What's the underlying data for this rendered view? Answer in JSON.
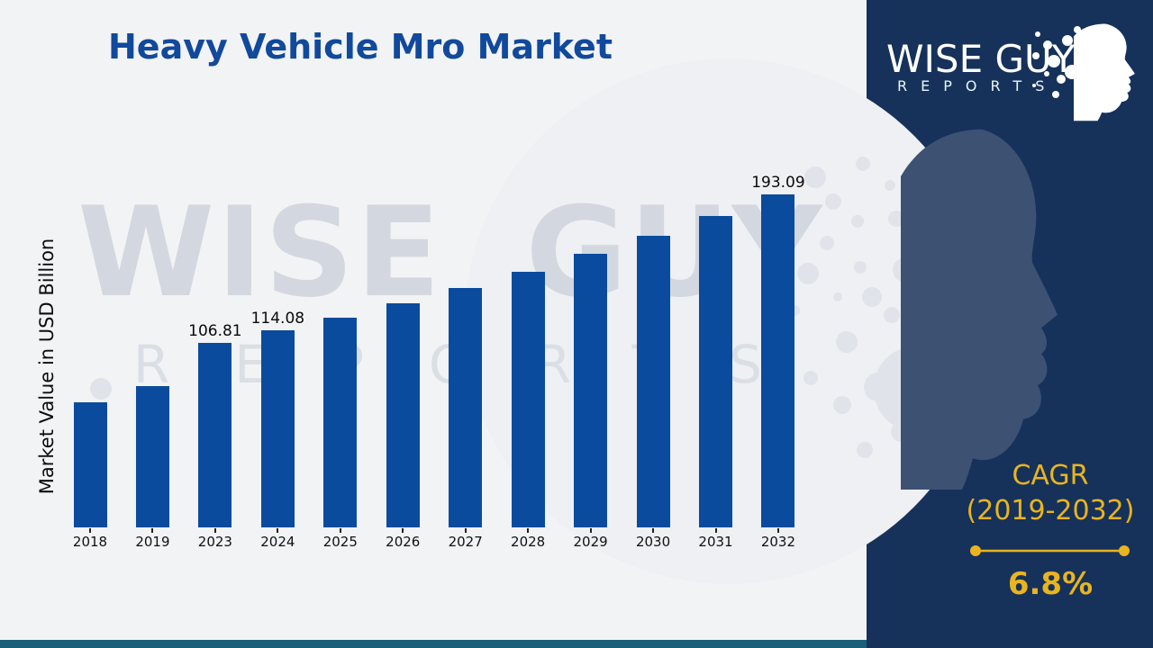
{
  "header": {
    "title": "Heavy Vehicle Mro Market"
  },
  "axis": {
    "y_label": "Market Value in USD Billion"
  },
  "watermark": {
    "line1": "WISE GUY",
    "line2": "REPORTS"
  },
  "logo": {
    "line1": "WISE GUY",
    "line2": "REPORTS"
  },
  "cagr": {
    "label": "CAGR",
    "range": "(2019-2032)",
    "value": "6.8%"
  },
  "colors": {
    "bar": "#0b4b9e",
    "title": "#11499c",
    "navy_panel": "#16325b",
    "teal_strip": "#1b5f7b",
    "gold": "#e9b41f",
    "background": "#f2f3f4"
  },
  "chart_data": {
    "type": "bar",
    "title": "Heavy Vehicle Mro Market",
    "xlabel": "",
    "ylabel": "Market Value in USD Billion",
    "categories": [
      "2018",
      "2019",
      "2023",
      "2024",
      "2025",
      "2026",
      "2027",
      "2028",
      "2029",
      "2030",
      "2031",
      "2032"
    ],
    "values": [
      72.7,
      82.1,
      106.81,
      114.08,
      121.84,
      130.12,
      138.97,
      148.42,
      158.51,
      169.29,
      180.8,
      193.09
    ],
    "data_labels": {
      "2023": "106.81",
      "2024": "114.08",
      "2032": "193.09"
    },
    "ylim": [
      0,
      210
    ],
    "grid": false,
    "legend": "none",
    "bar_color": "#0b4b9e",
    "note": "CAGR (2019-2032) 6.8%"
  }
}
